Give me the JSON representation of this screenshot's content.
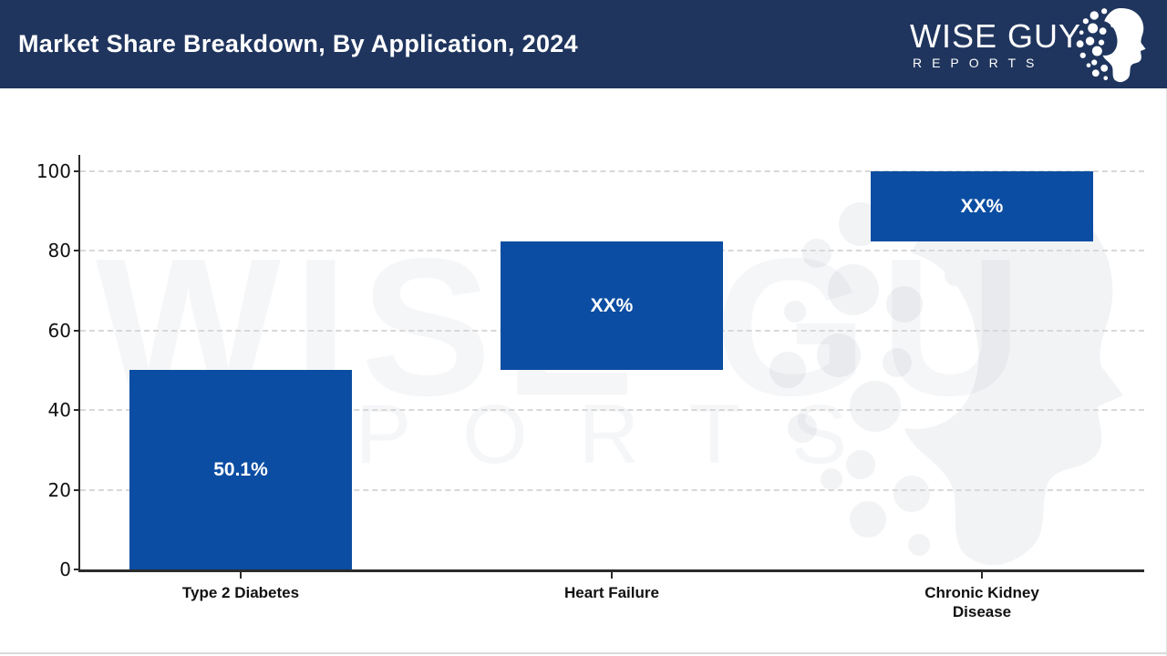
{
  "header": {
    "title": "Market Share Breakdown, By Application, 2024",
    "bg_color": "#1f355e",
    "logo": {
      "line1": "WISE GUY",
      "line2": "REPORTS"
    }
  },
  "watermark": {
    "line1": "WISE GU",
    "line2": "REPORTS"
  },
  "chart_data": {
    "type": "bar",
    "variant": "floating-stacked-percent",
    "title": "Market Share Breakdown, By Application, 2024",
    "categories": [
      "Type 2 Diabetes",
      "Heart Failure",
      "Chronic Kidney Disease"
    ],
    "series": [
      {
        "name": "Type 2 Diabetes",
        "start": 0,
        "end": 50.1,
        "label": "50.1%"
      },
      {
        "name": "Heart Failure",
        "start": 50.1,
        "end": 82.3,
        "label": "XX%"
      },
      {
        "name": "Chronic Kidney Disease",
        "start": 82.3,
        "end": 100,
        "label": "XX%"
      }
    ],
    "ylim": [
      0,
      100
    ],
    "yticks": [
      0,
      20,
      40,
      60,
      80,
      100
    ],
    "xlabel": "",
    "ylabel": "",
    "grid": "horizontal-dashed",
    "legend": "none",
    "bar_color": "#0b4da2",
    "bar_label_color": "#ffffff",
    "axis_color": "#2b2b2b",
    "grid_color": "#d8d8d8"
  }
}
